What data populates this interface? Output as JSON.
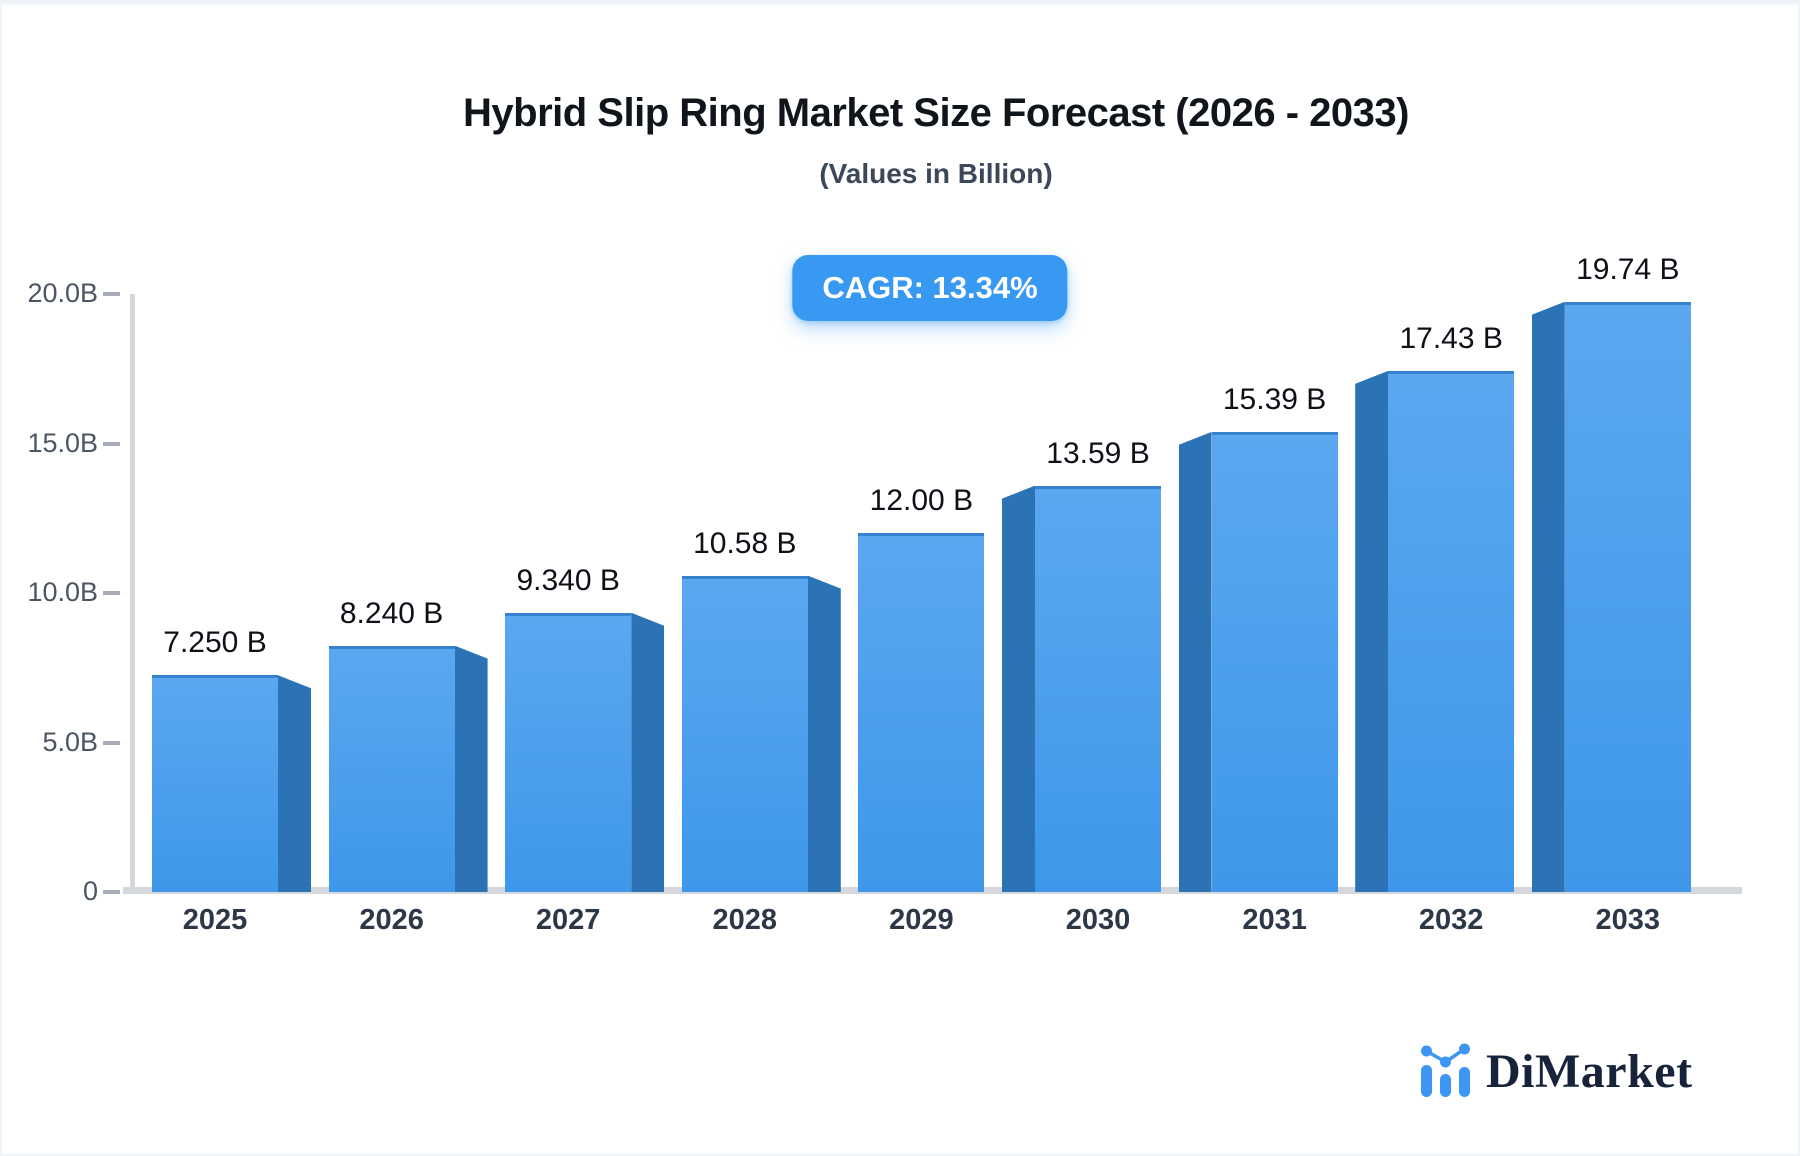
{
  "header": {
    "title": "Hybrid Slip Ring Market Size Forecast (2026 - 2033)",
    "subtitle": "(Values in Billion)",
    "cagr_badge": "CAGR: 13.34%"
  },
  "branding": {
    "logo_icon": "bar-chart-with-dots-icon",
    "logo_text": "DiMarket",
    "logo_color": "#3e96f4",
    "logo_text_color": "#17233a"
  },
  "chart_data": {
    "type": "bar",
    "title": "Hybrid Slip Ring Market Size Forecast (2026 - 2033)",
    "subtitle": "(Values in Billion)",
    "annotation": "CAGR: 13.34%",
    "categories": [
      "2025",
      "2026",
      "2027",
      "2028",
      "2029",
      "2030",
      "2031",
      "2032",
      "2033"
    ],
    "values": [
      7.25,
      8.24,
      9.34,
      10.58,
      12.0,
      13.59,
      15.39,
      17.43,
      19.74
    ],
    "value_labels": [
      "7.250 B",
      "8.240 B",
      "9.340 B",
      "10.58 B",
      "12.00 B",
      "13.59 B",
      "15.39 B",
      "17.43 B",
      "19.74 B"
    ],
    "xlabel": "",
    "ylabel": "",
    "ylim": [
      0,
      20
    ],
    "yticks": [
      {
        "label": "20.0B",
        "value": 20
      },
      {
        "label": "15.0B",
        "value": 15
      },
      {
        "label": "10.0B",
        "value": 10
      },
      {
        "label": "5.0B",
        "value": 5
      },
      {
        "label": "0",
        "value": 0
      }
    ],
    "grid": false,
    "legend": false,
    "bar_gradient_top": "#5ba7f0",
    "bar_gradient_bottom": "#3e97ea",
    "bar_top_edge_color": "#3583cf",
    "bar_side_color": "#2b73b5",
    "axis_color": "#d4d8dd",
    "badge_color": "#3799f2"
  }
}
